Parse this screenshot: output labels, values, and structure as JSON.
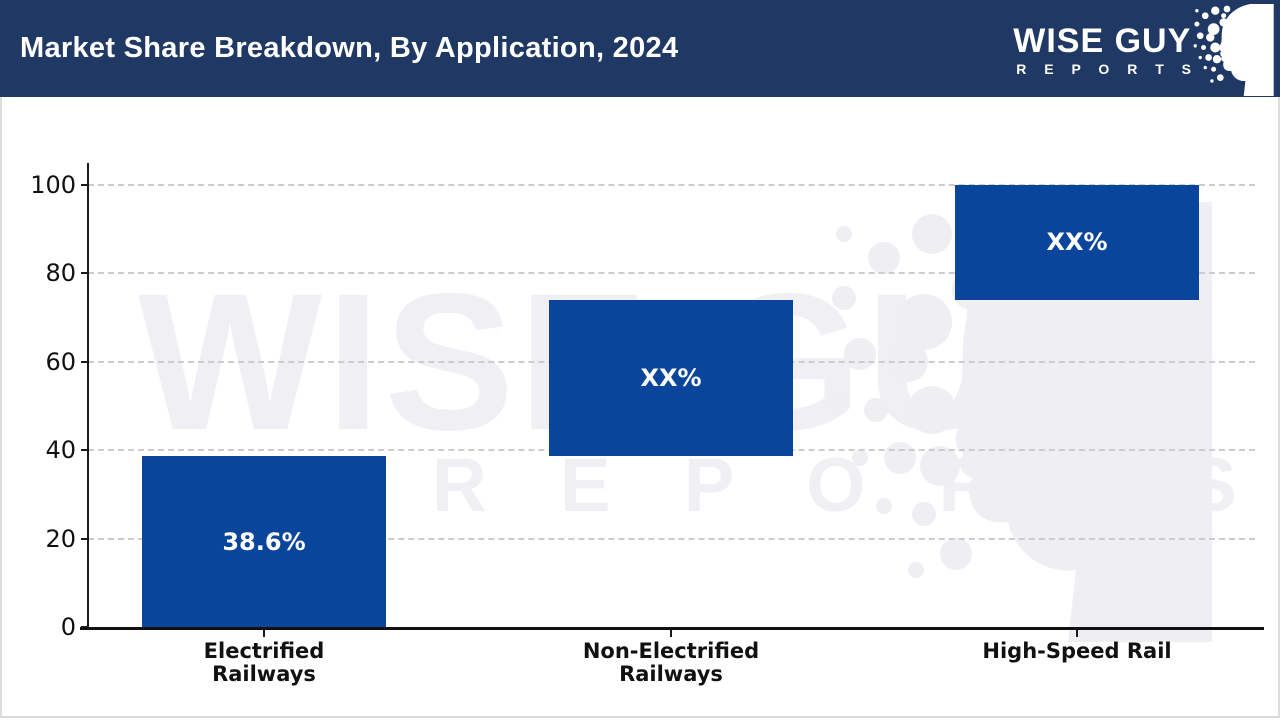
{
  "page": {
    "bg": "#ffffff",
    "frame_color": "#dcdcdc"
  },
  "header": {
    "bg_color": "#203864",
    "title": "Market Share Breakdown, By Application, 2024",
    "logo": {
      "line1": "WISE GUY",
      "line2": "R E P O R T S"
    }
  },
  "watermark": {
    "line1": "WISE GUY",
    "line2": "R E P O R T S"
  },
  "chart_data": {
    "type": "bar",
    "subtype": "waterfall",
    "title": "Market Share Breakdown, By Application, 2024",
    "categories": [
      [
        "Electrified",
        "Railways"
      ],
      [
        "Non-Electrified",
        "Railways"
      ],
      [
        "High-Speed Rail"
      ]
    ],
    "segments": [
      {
        "start": 0,
        "end": 38.6,
        "label": "38.6%"
      },
      {
        "start": 38.6,
        "end": 74,
        "label": "XX%"
      },
      {
        "start": 74,
        "end": 100,
        "label": "XX%"
      }
    ],
    "ylim": [
      0,
      100
    ],
    "yticks": [
      0,
      20,
      40,
      60,
      80,
      100
    ],
    "xlabel": "",
    "ylabel": "",
    "grid": "horizontal-dashed",
    "legend": "none",
    "bar_color": "#0a459c",
    "value_label_color": "#ffffff"
  }
}
